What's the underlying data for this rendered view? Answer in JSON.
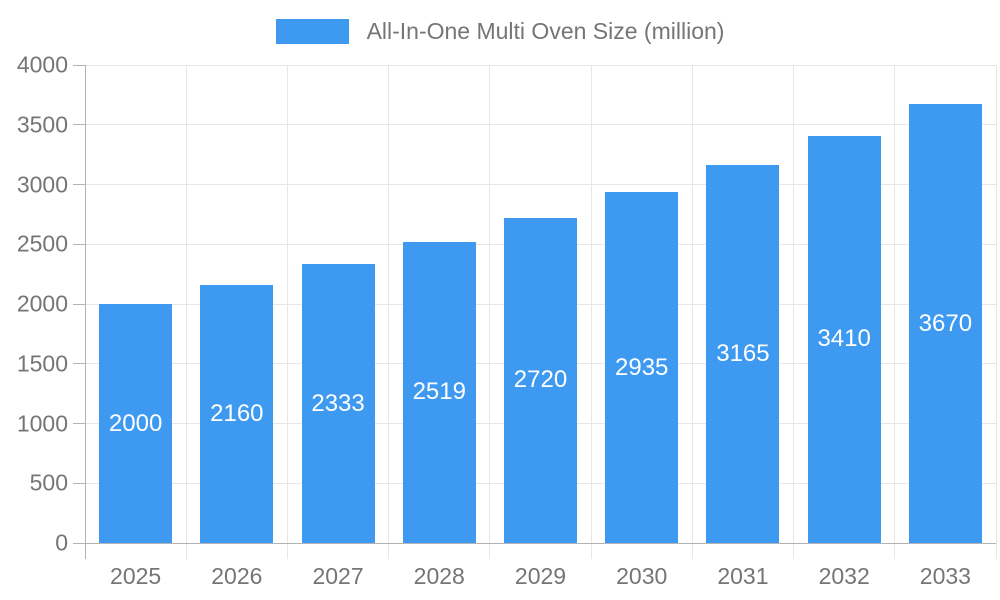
{
  "legend": {
    "label": "All-In-One Multi Oven Size (million)"
  },
  "chart_data": {
    "type": "bar",
    "title": "",
    "xlabel": "",
    "ylabel": "",
    "categories": [
      "2025",
      "2026",
      "2027",
      "2028",
      "2029",
      "2030",
      "2031",
      "2032",
      "2033"
    ],
    "values": [
      2000,
      2160,
      2333,
      2519,
      2720,
      2935,
      3165,
      3410,
      3670
    ],
    "series_name": "All-In-One Multi Oven Size (million)",
    "ylim": [
      0,
      4000
    ],
    "yticks": [
      0,
      500,
      1000,
      1500,
      2000,
      2500,
      3000,
      3500,
      4000
    ],
    "grid": true,
    "legend_position": "top-center",
    "value_labels": "inside-center",
    "colors": {
      "bar": "#3D9AF0",
      "value_label": "#ffffff",
      "axis_text": "#757575",
      "grid_line": "#e6e6e6",
      "axis_line": "#b3b3b3",
      "background": "#ffffff"
    }
  }
}
